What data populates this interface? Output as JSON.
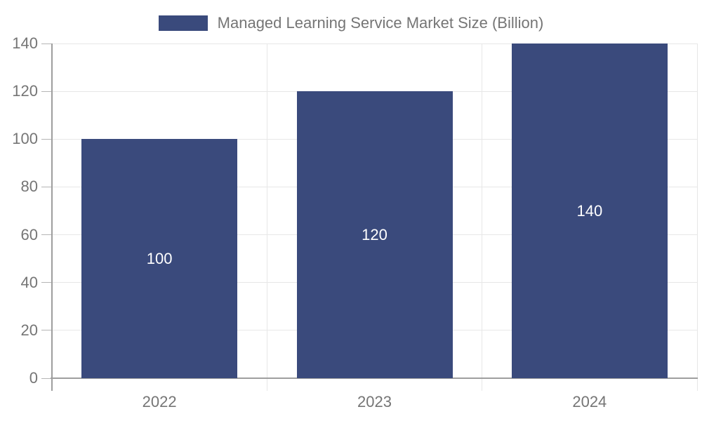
{
  "chart_data": {
    "type": "bar",
    "title": "Managed Learning Service Market Size (Billion)",
    "categories": [
      "2022",
      "2023",
      "2024"
    ],
    "values": [
      100,
      120,
      140
    ],
    "bar_labels": [
      "100",
      "120",
      "140"
    ],
    "ylim": [
      0,
      140
    ],
    "yticks": [
      0,
      20,
      40,
      60,
      80,
      100,
      120,
      140
    ],
    "grid": true,
    "legend_position": "top",
    "xlabel": "",
    "ylabel": "",
    "colors": {
      "bar": "#3A4A7C",
      "gridline": "#e7e7e7",
      "axis_line": "#9e9e9e",
      "tick": "#b5b5b5",
      "axis_text": "#757575",
      "bar_label": "#ffffff",
      "background": "#ffffff"
    }
  }
}
